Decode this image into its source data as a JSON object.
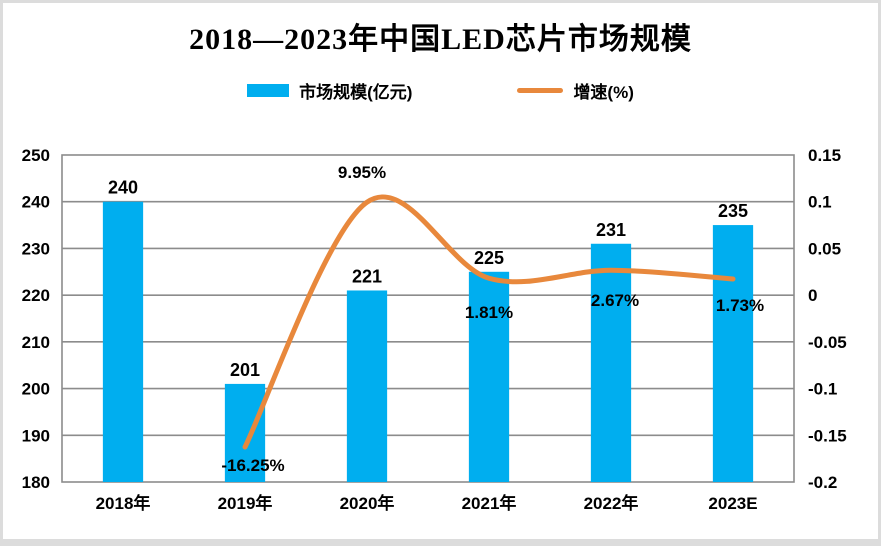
{
  "title": "2018—2023年中国LED芯片市场规模",
  "legend": [
    {
      "label": "市场规模(亿元)",
      "color": "#00AEEF",
      "type": "bar"
    },
    {
      "label": "增速(%)",
      "color": "#E8883C",
      "type": "line"
    }
  ],
  "chart_data": {
    "type": "bar+line combo",
    "title": "2018—2023年中国LED芯片市场规模",
    "categories": [
      "2018年",
      "2019年",
      "2020年",
      "2021年",
      "2022年",
      "2023E"
    ],
    "series": [
      {
        "name": "市场规模(亿元)",
        "type": "bar",
        "axis": "left",
        "color": "#00AEEF",
        "values": [
          240,
          201,
          221,
          225,
          231,
          235
        ],
        "labels": [
          "240",
          "201",
          "221",
          "225",
          "231",
          "235"
        ]
      },
      {
        "name": "增速(%)",
        "type": "line",
        "axis": "right",
        "color": "#E8883C",
        "values": [
          null,
          -0.1625,
          0.0995,
          0.0181,
          0.0267,
          0.0173
        ],
        "labels": [
          null,
          "-16.25%",
          "9.95%",
          "1.81%",
          "2.67%",
          "1.73%"
        ],
        "label_offsets": [
          null,
          [
            8,
            24
          ],
          [
            -5,
            -24
          ],
          [
            0,
            40
          ],
          [
            4,
            36
          ],
          [
            7,
            32
          ]
        ]
      }
    ],
    "left_axis": {
      "min": 180,
      "max": 250,
      "step": 10,
      "ticks": [
        "250",
        "240",
        "230",
        "220",
        "210",
        "200",
        "190",
        "180"
      ]
    },
    "right_axis": {
      "min": -0.2,
      "max": 0.15,
      "step": 0.05,
      "ticks": [
        "0.15",
        "0.1",
        "0.05",
        "0",
        "-0.05",
        "-0.1",
        "-0.15",
        "-0.2"
      ]
    },
    "grid": true,
    "grid_color": "#8C8C8C",
    "legend_position": "top"
  },
  "colors": {
    "background": "#FFFFFF",
    "frame": "#DCDCDC",
    "bar": "#00AEEF",
    "line": "#E8883C",
    "grid": "#8C8C8C",
    "text": "#000000"
  }
}
